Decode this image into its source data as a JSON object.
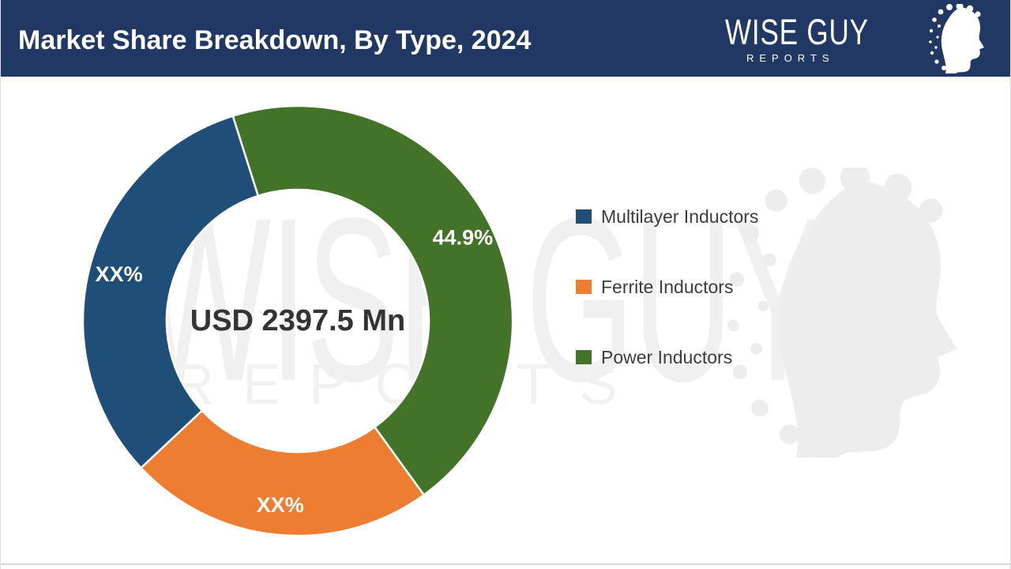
{
  "header": {
    "title": "Market Share Breakdown, By Type, 2024",
    "bg_color": "#203863",
    "logo": {
      "line1": "WISE GUY",
      "line2": "REPORTS"
    }
  },
  "watermark": {
    "line1": "WISE GUY",
    "line2": "REPORTS"
  },
  "chart_data": {
    "type": "pie",
    "subtype": "donut",
    "title": "Market Share Breakdown, By Type, 2024",
    "center_label": "USD 2397.5 Mn",
    "start_angle_deg": 107.6,
    "direction": "counterclockwise",
    "inner_radius_ratio": 0.61,
    "legend_position": "right",
    "grid": false,
    "segments": [
      {
        "name": "Multilayer Inductors",
        "label": "XX%",
        "value_pct": 32.1,
        "color": "#1F4E79"
      },
      {
        "name": "Ferrite Inductors",
        "label": "XX%",
        "value_pct": 23.0,
        "color": "#ED7D31"
      },
      {
        "name": "Power Inductors",
        "label": "44.9%",
        "value_pct": 44.9,
        "color": "#437229"
      }
    ]
  }
}
